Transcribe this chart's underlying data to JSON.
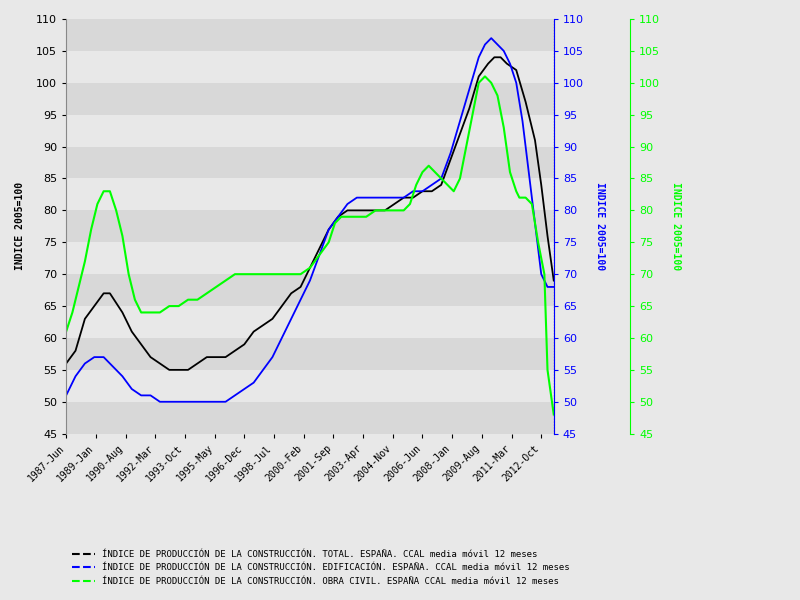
{
  "ylabel": "INDICE 2005=100",
  "ylim": [
    45,
    110
  ],
  "xtick_labels": [
    "1987-Jun",
    "1989-Jan",
    "1990-Aug",
    "1992-Mar",
    "1993-Oct",
    "1995-May",
    "1996-Dec",
    "1998-Jul",
    "2000-Feb",
    "2001-Sep",
    "2003-Apr",
    "2004-Nov",
    "2006-Jun",
    "2008-Jan",
    "2009-Aug",
    "2011-Mar",
    "2012-Oct"
  ],
  "legend_labels": [
    "ÍNDICE DE PRODUCCIÓN DE LA CONSTRUCCIÓN. TOTAL. ESPAÑA. CCAL media móvil 12 meses",
    "ÍNDICE DE PRODUCCIÓN DE LA CONSTRUCCIÓN. EDIFICACIÓN. ESPAÑA. CCAL media móvil 12 meses",
    "ÍNDICE DE PRODUCCIÓN DE LA CONSTRUCCIÓN. OBRA CIVIL. ESPAÑA CCAL media móvil 12 meses"
  ],
  "background_color": "#e8e8e8",
  "plot_bg_color": "#e8e8e8",
  "black_pts": {
    "0": 56,
    "6": 58,
    "12": 63,
    "18": 65,
    "24": 67,
    "28": 67,
    "36": 64,
    "42": 61,
    "48": 59,
    "54": 57,
    "60": 56,
    "66": 55,
    "72": 55,
    "78": 55,
    "84": 56,
    "90": 57,
    "96": 57,
    "102": 57,
    "108": 58,
    "114": 59,
    "120": 61,
    "126": 62,
    "132": 63,
    "138": 65,
    "144": 67,
    "150": 68,
    "156": 71,
    "162": 74,
    "168": 77,
    "174": 79,
    "180": 80,
    "186": 80,
    "192": 80,
    "198": 80,
    "204": 80,
    "210": 81,
    "216": 82,
    "222": 82,
    "228": 83,
    "234": 83,
    "240": 84,
    "246": 88,
    "252": 92,
    "258": 96,
    "264": 101,
    "270": 103,
    "274": 104,
    "278": 104,
    "282": 103,
    "288": 102,
    "294": 97,
    "300": 91,
    "304": 84,
    "308": 76,
    "312": 69
  },
  "blue_pts": {
    "0": 51,
    "6": 54,
    "12": 56,
    "18": 57,
    "24": 57,
    "28": 56,
    "36": 54,
    "42": 52,
    "48": 51,
    "54": 51,
    "60": 50,
    "66": 50,
    "72": 50,
    "78": 50,
    "84": 50,
    "90": 50,
    "96": 50,
    "102": 50,
    "108": 51,
    "114": 52,
    "120": 53,
    "126": 55,
    "132": 57,
    "138": 60,
    "144": 63,
    "150": 66,
    "156": 69,
    "162": 73,
    "168": 77,
    "174": 79,
    "180": 81,
    "186": 82,
    "192": 82,
    "198": 82,
    "204": 82,
    "210": 82,
    "216": 82,
    "222": 83,
    "228": 83,
    "234": 84,
    "240": 85,
    "246": 89,
    "252": 94,
    "258": 99,
    "264": 104,
    "268": 106,
    "272": 107,
    "276": 106,
    "280": 105,
    "284": 103,
    "288": 100,
    "292": 94,
    "296": 86,
    "300": 78,
    "304": 70,
    "308": 68,
    "312": 68
  },
  "green_pts": {
    "0": 61,
    "4": 64,
    "8": 68,
    "12": 72,
    "16": 77,
    "20": 81,
    "24": 83,
    "28": 83,
    "32": 80,
    "36": 76,
    "40": 70,
    "44": 66,
    "48": 64,
    "52": 64,
    "56": 64,
    "60": 64,
    "66": 65,
    "72": 65,
    "78": 66,
    "84": 66,
    "90": 67,
    "96": 68,
    "102": 69,
    "108": 70,
    "114": 70,
    "120": 70,
    "126": 70,
    "132": 70,
    "138": 70,
    "144": 70,
    "150": 70,
    "156": 71,
    "162": 73,
    "168": 75,
    "172": 78,
    "176": 79,
    "180": 79,
    "186": 79,
    "192": 79,
    "198": 80,
    "204": 80,
    "210": 80,
    "216": 80,
    "220": 81,
    "224": 84,
    "228": 86,
    "232": 87,
    "236": 86,
    "240": 85,
    "244": 84,
    "248": 83,
    "252": 85,
    "256": 90,
    "260": 95,
    "264": 100,
    "268": 101,
    "272": 100,
    "276": 98,
    "280": 93,
    "284": 86,
    "288": 83,
    "290": 82,
    "294": 82,
    "298": 81,
    "302": 75,
    "306": 70,
    "308": 55,
    "312": 48
  }
}
